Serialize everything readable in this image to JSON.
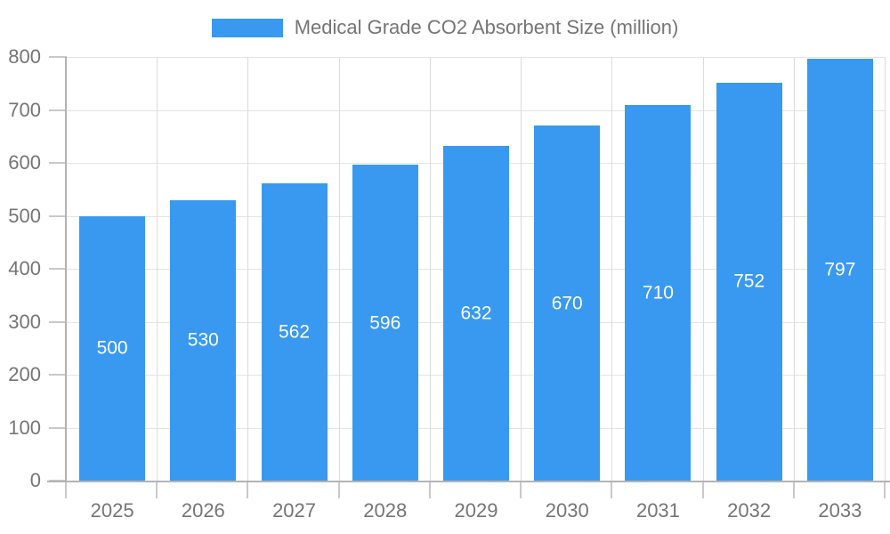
{
  "chart_data": {
    "type": "bar",
    "title": "Medical Grade CO2 Absorbent Size (million)",
    "categories": [
      "2025",
      "2026",
      "2027",
      "2028",
      "2029",
      "2030",
      "2031",
      "2032",
      "2033"
    ],
    "values": [
      500,
      530,
      562,
      596,
      632,
      670,
      710,
      752,
      797
    ],
    "series": [
      {
        "name": "Medical Grade CO2 Absorbent Size (million)",
        "values": [
          500,
          530,
          562,
          596,
          632,
          670,
          710,
          752,
          797
        ]
      }
    ],
    "xlabel": "",
    "ylabel": "",
    "ylim": [
      0,
      800
    ],
    "ytick_interval": 100,
    "ytick_labels": [
      "0",
      "100",
      "200",
      "300",
      "400",
      "500",
      "600",
      "700",
      "800"
    ],
    "grid": true,
    "legend_position": "top",
    "bar_value_labels": true
  },
  "legend": {
    "items": [
      {
        "label": "Medical Grade CO2 Absorbent Size (million)",
        "color": "#3999F0"
      }
    ]
  },
  "colors": {
    "bar": "#3999F0",
    "bar_label_text": "#FFFFFF",
    "axis_line": "#B3B3B3",
    "tick_mark": "#C9C9C9",
    "grid_horizontal": "#E4E4E4",
    "grid_vertical": "#DCDCDC",
    "label_text": "#757575",
    "background": "#FFFFFF"
  }
}
